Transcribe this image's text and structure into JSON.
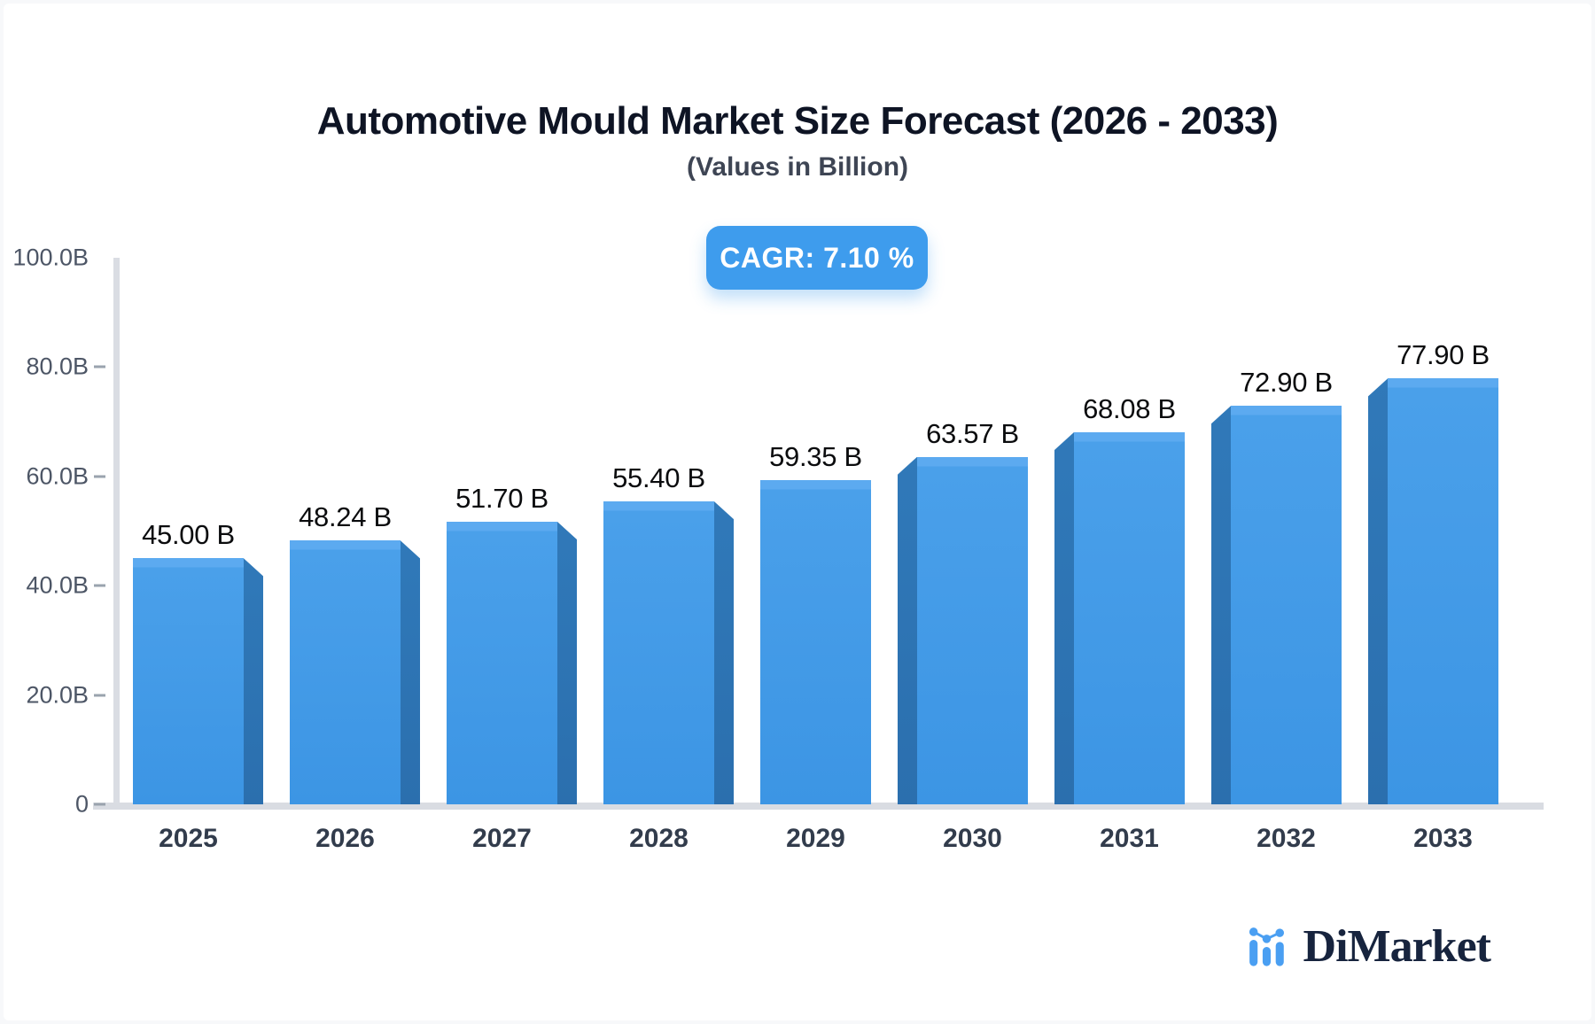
{
  "header": {
    "title": "Automotive Mould Market Size Forecast (2026 - 2033)",
    "subtitle": "(Values in Billion)"
  },
  "cagr_badge": {
    "label": "CAGR: 7.10 %"
  },
  "chart_data": {
    "type": "bar",
    "title": "Automotive Mould Market Size Forecast (2026 - 2033)",
    "subtitle": "(Values in Billion)",
    "categories": [
      "2025",
      "2026",
      "2027",
      "2028",
      "2029",
      "2030",
      "2031",
      "2032",
      "2033"
    ],
    "values": [
      45.0,
      48.24,
      51.7,
      55.4,
      59.35,
      63.57,
      68.08,
      72.9,
      77.9
    ],
    "bar_labels": [
      "45.00 B",
      "48.24 B",
      "51.70 B",
      "55.40 B",
      "59.35 B",
      "63.57 B",
      "68.08 B",
      "72.90 B",
      "77.90 B"
    ],
    "cagr_percent": "7.10 %",
    "xlabel": "",
    "ylabel": "",
    "ylim": [
      0,
      100
    ],
    "y_tick_values": [
      100,
      80,
      60,
      40,
      20,
      0
    ],
    "y_tick_labels": [
      "100.0B",
      "80.0B",
      "60.0B",
      "40.0B",
      "20.0B",
      "0"
    ],
    "grid": "off",
    "legend": "none",
    "style": "3d-perspective-bars-facing-center",
    "colors": {
      "bar_face": "#469EE9",
      "bar_face_highlight": "#5CAAF0",
      "bar_side": "#2C74B5",
      "badge": "#3E9CED",
      "axis": "#D9DCE2",
      "tick_dash": "#9AA3AE"
    }
  },
  "branding": {
    "logo_text": "DiMarket",
    "logo_icon": "bar-line-chart-icon",
    "icon_color": "#4a9ff2",
    "text_color": "#17243e"
  }
}
